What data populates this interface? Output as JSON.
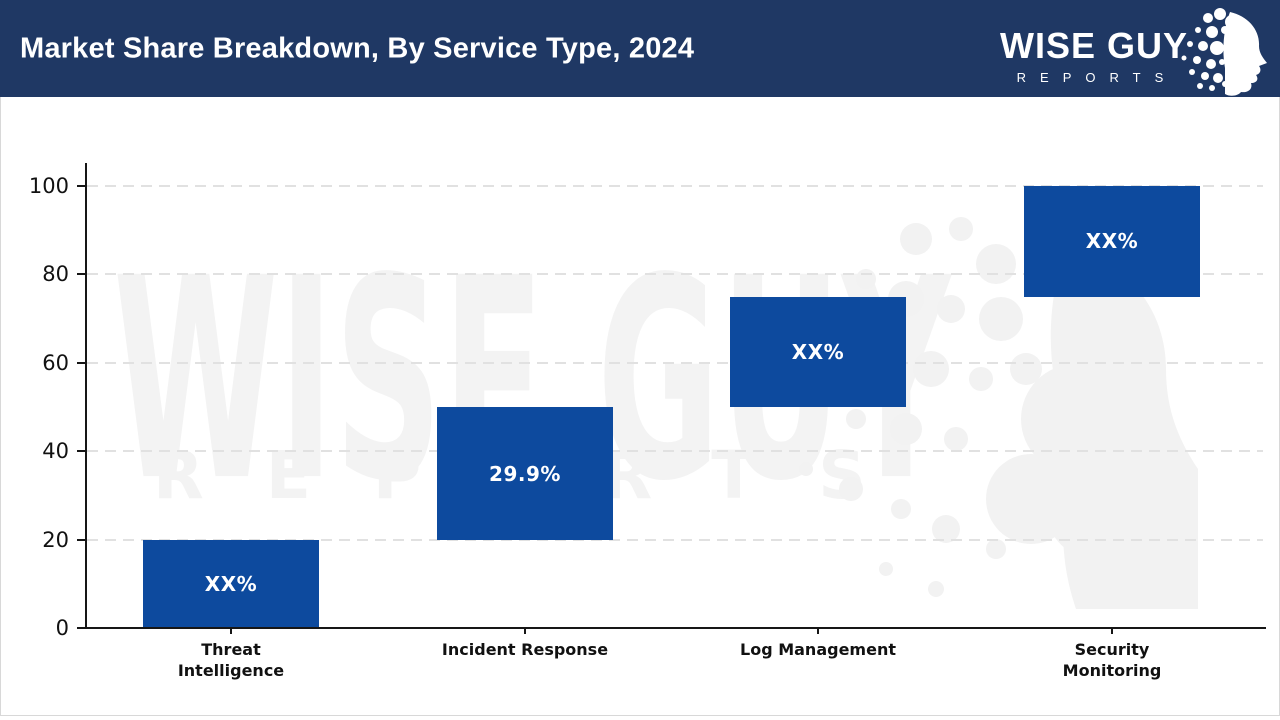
{
  "header": {
    "title": "Market Share Breakdown, By Service Type, 2024",
    "logo": {
      "name": "WISE GUY",
      "tagline": "REPORTS"
    }
  },
  "watermark": {
    "line1": "WISE GUY",
    "line2": "REPORTS"
  },
  "chart_data": {
    "type": "bar",
    "variant": "floating-segment-waterfall",
    "title": "Market Share Breakdown, By Service Type, 2024",
    "categories": [
      "Threat Intelligence",
      "Incident Response",
      "Log Management",
      "Security Monitoring"
    ],
    "categories_lines": [
      [
        "Threat",
        "Intelligence"
      ],
      [
        "Incident Response"
      ],
      [
        "Log Management"
      ],
      [
        "Security",
        "Monitoring"
      ]
    ],
    "segments": [
      {
        "category": "Threat Intelligence",
        "start": 0,
        "end": 20,
        "label": "XX%"
      },
      {
        "category": "Incident Response",
        "start": 20,
        "end": 49.9,
        "label": "29.9%"
      },
      {
        "category": "Log Management",
        "start": 49.9,
        "end": 75,
        "label": "XX%"
      },
      {
        "category": "Security Monitoring",
        "start": 75,
        "end": 100,
        "label": "XX%"
      }
    ],
    "yticks": [
      0,
      20,
      40,
      60,
      80,
      100
    ],
    "ylim": [
      0,
      105
    ],
    "xlabel": "",
    "ylabel": "",
    "grid": {
      "axis": "y",
      "style": "dashed",
      "color": "#e1e1e1"
    },
    "legend": null,
    "bar_color": "#0d4a9e",
    "bar_label_color": "#ffffff",
    "axis_color": "#161616"
  },
  "colors": {
    "header_bg": "#1f3864",
    "bar": "#0d4a9e",
    "grid": "#e1e1e1",
    "axis": "#161616",
    "watermark": "#f3f3f3",
    "canvas_border": "#d8d8d8"
  }
}
